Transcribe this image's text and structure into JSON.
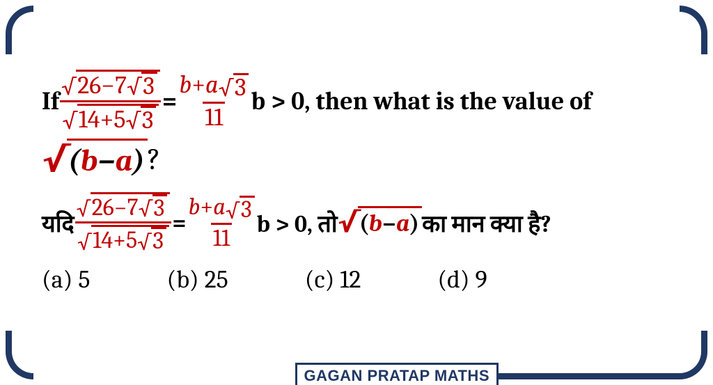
{
  "colors": {
    "bracket": "#203864",
    "text_black": "#000000",
    "text_red": "#c00000",
    "footer_border": "#1f3864",
    "footer_text": "#203864"
  },
  "q": {
    "en": {
      "if": "If ",
      "eq": "=",
      "cond": " b > 0, then what is the value of",
      "ask": " ?"
    },
    "hi": {
      "if": "यदि ",
      "eq": "=",
      "cond": " b > 0, तो ",
      "ask": " का मान क्या है?"
    },
    "lhs": {
      "num_inner": "26−7",
      "num_inner_root": "3",
      "den_inner": "14+5",
      "den_inner_root": "3"
    },
    "rhs": {
      "num_b": "b",
      "num_plus": "+",
      "num_a": "a",
      "num_root": "3",
      "den": "11"
    },
    "expr": {
      "open": "(",
      "b": "b",
      "minus": " − ",
      "a": "a",
      "close": ")"
    }
  },
  "options": {
    "a": "(a) 5",
    "b": "(b) 25",
    "c": "(c) 12",
    "d": "(d) 9"
  },
  "footer": "GAGAN PRATAP MATHS"
}
